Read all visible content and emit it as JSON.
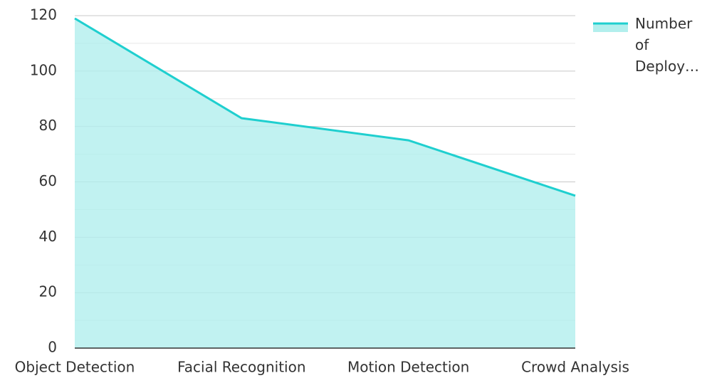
{
  "chart_data": {
    "type": "area",
    "categories": [
      "Object Detection",
      "Facial Recognition",
      "Motion Detection",
      "Crowd Analysis"
    ],
    "series": [
      {
        "name": "Number of Deploy…",
        "color": "#1fcfcf",
        "fill": "#b2efed",
        "values": [
          119,
          83,
          75,
          55
        ]
      }
    ],
    "ylim": [
      0,
      120
    ],
    "yticks": [
      0,
      20,
      40,
      60,
      80,
      100,
      120
    ],
    "minor_yticks": [
      10,
      30,
      50,
      70,
      90,
      110
    ],
    "grid": true,
    "legend": "right"
  }
}
